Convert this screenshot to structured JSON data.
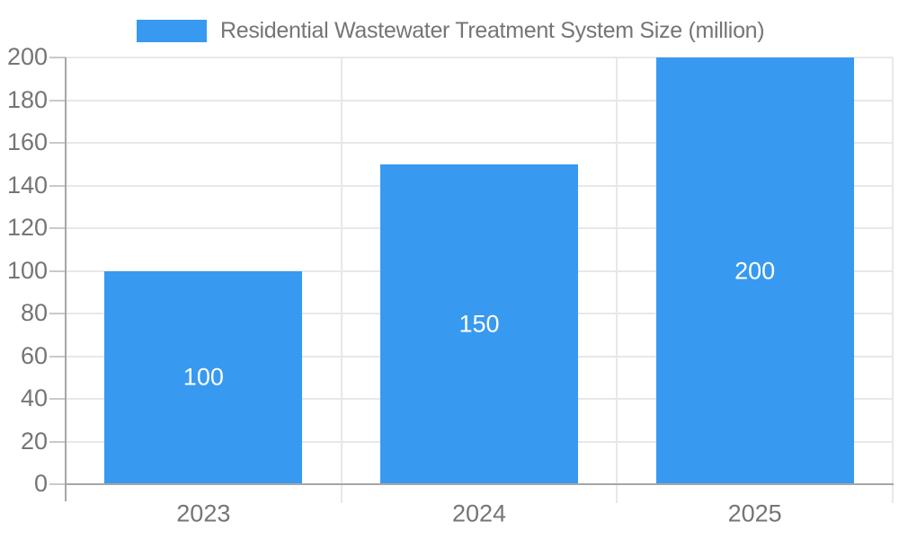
{
  "legend": {
    "label": "Residential Wastewater Treatment System Size (million)"
  },
  "chart_data": {
    "type": "bar",
    "title": "Residential Wastewater Treatment System Size (million)",
    "categories": [
      "2023",
      "2024",
      "2025"
    ],
    "values": [
      100,
      150,
      200
    ],
    "bar_labels": [
      "100",
      "150",
      "200"
    ],
    "xlabel": "",
    "ylabel": "",
    "ylim": [
      0,
      200
    ],
    "ytick_step": 20,
    "yticks": [
      0,
      20,
      40,
      60,
      80,
      100,
      120,
      140,
      160,
      180,
      200
    ],
    "grid": true,
    "legend_position": "top",
    "colors": {
      "bar": "#3899F0",
      "bar_label": "#FFFFFF",
      "axis_text": "#757575",
      "grid": "#E8E8E8",
      "axis_line": "#A6A6A6",
      "tick": "#C9C9C9",
      "background": "#FFFFFF"
    }
  }
}
